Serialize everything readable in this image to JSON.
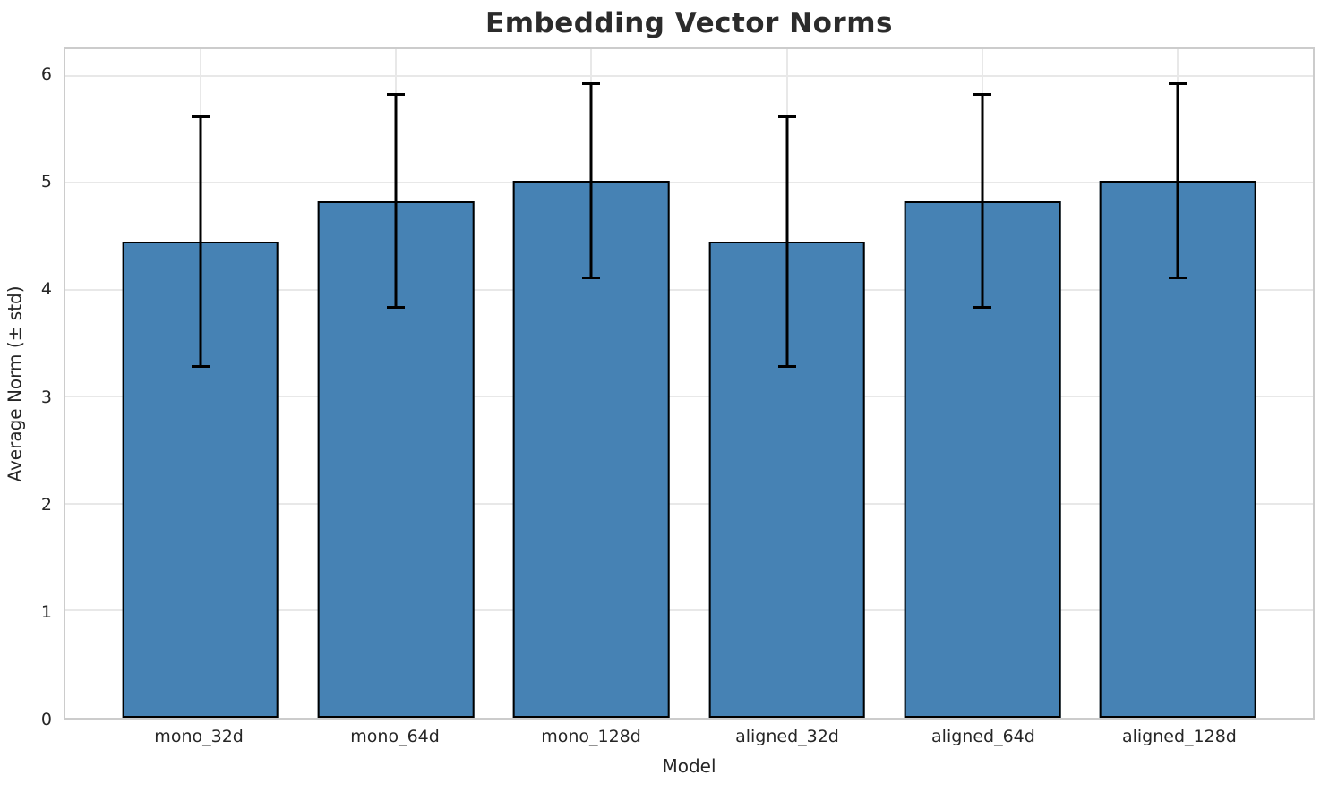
{
  "chart_data": {
    "type": "bar",
    "title": "Embedding Vector Norms",
    "xlabel": "Model",
    "ylabel": "Average Norm (± std)",
    "categories": [
      "mono_32d",
      "mono_64d",
      "mono_128d",
      "aligned_32d",
      "aligned_64d",
      "aligned_128d"
    ],
    "values": [
      4.45,
      4.83,
      5.02,
      4.45,
      4.83,
      5.02
    ],
    "errors": [
      1.18,
      1.01,
      0.92,
      1.18,
      1.01,
      0.92
    ],
    "error_bar_tops": [
      5.63,
      5.84,
      5.94,
      5.63,
      5.84,
      5.94
    ],
    "error_bar_bottoms": [
      3.27,
      3.82,
      4.1,
      3.27,
      3.82,
      4.1
    ],
    "yticks": [
      0,
      1,
      2,
      3,
      4,
      5,
      6
    ],
    "ylim": [
      0,
      6.25
    ],
    "xlim": [
      -0.69,
      5.69
    ],
    "bar_width": 0.8,
    "grid": true,
    "legend": false,
    "colors": {
      "bar_fill": "#4682b4",
      "bar_edge": "#000000",
      "error_bar": "#000000",
      "grid_line": "#e8e8e8",
      "spine": "#cccccc",
      "text": "#262626"
    }
  }
}
